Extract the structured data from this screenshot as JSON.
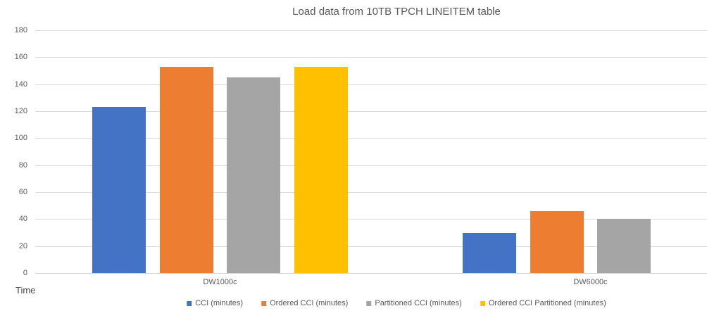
{
  "chart_data": {
    "type": "bar",
    "title": "Load data from 10TB TPCH LINEITEM table",
    "categories": [
      "DW1000c",
      "DW6000c"
    ],
    "series": [
      {
        "name": "CCI (minutes)",
        "color": "#4472C4",
        "values": [
          123,
          30
        ]
      },
      {
        "name": "Ordered CCI (minutes)",
        "color": "#ED7D31",
        "values": [
          153,
          46
        ]
      },
      {
        "name": "Partitioned CCI (minutes)",
        "color": "#A5A5A5",
        "values": [
          145,
          40
        ]
      },
      {
        "name": "Ordered CCI Partitioned (minutes)",
        "color": "#FFC000",
        "values": [
          153,
          null
        ]
      }
    ],
    "xlabel": "",
    "ylabel": "Time",
    "ylim": [
      0,
      180
    ],
    "ytick_step": 20,
    "yticks": [
      0,
      20,
      40,
      60,
      80,
      100,
      120,
      140,
      160,
      180
    ],
    "grid": true,
    "legend_position": "bottom"
  }
}
